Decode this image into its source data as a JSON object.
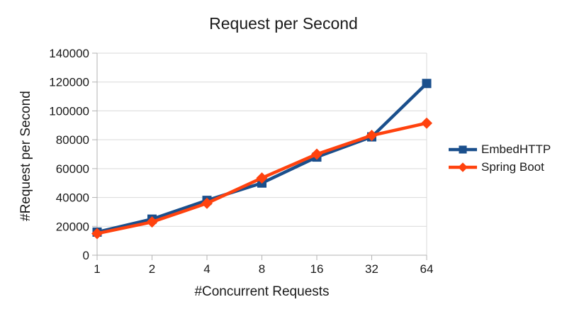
{
  "chart_data": {
    "type": "line",
    "title": "Request per Second",
    "xlabel": "#Concurrent Requests",
    "ylabel": "#Request per Second",
    "categories": [
      "1",
      "2",
      "4",
      "8",
      "16",
      "32",
      "64"
    ],
    "series": [
      {
        "name": "EmbedHTTP",
        "color": "#1A4F8C",
        "marker": "square",
        "values": [
          16000,
          25000,
          38000,
          50000,
          68000,
          82000,
          119000
        ]
      },
      {
        "name": "Spring Boot",
        "color": "#FF420E",
        "marker": "diamond",
        "values": [
          15000,
          23000,
          36000,
          53500,
          70000,
          83000,
          91500
        ]
      }
    ],
    "ylim": [
      0,
      140000
    ],
    "y_ticks": [
      0,
      20000,
      40000,
      60000,
      80000,
      100000,
      120000,
      140000
    ],
    "grid": "horizontal",
    "legend_position": "right",
    "axis_color": "#b3b3b3",
    "grid_color": "#d9d9d9",
    "text_color": "#1a1a1a",
    "background_color": "#ffffff"
  }
}
